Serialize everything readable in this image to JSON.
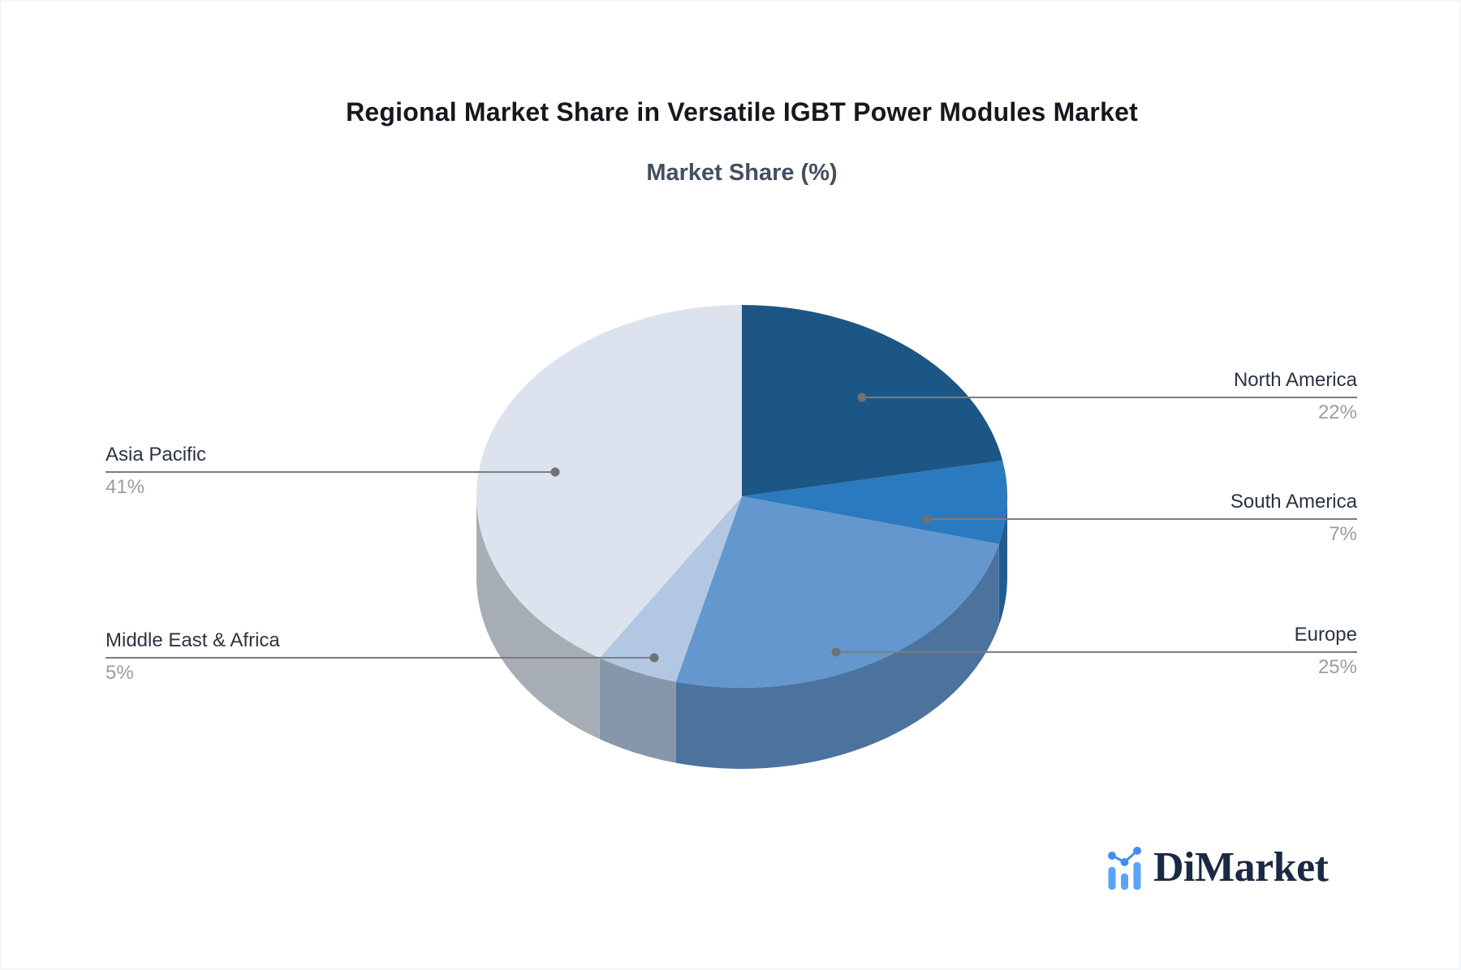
{
  "chart_data": {
    "type": "pie",
    "style": "3d",
    "title": "Regional Market Share in Versatile IGBT Power Modules Market",
    "subtitle": "Market Share (%)",
    "unit": "%",
    "start_angle": "12-oclock",
    "direction": "clockwise",
    "legend": "none",
    "points": [
      {
        "label": "North America",
        "value": 22,
        "value_label": "22%",
        "color": "#1c5685",
        "callout_side": "right"
      },
      {
        "label": "South America",
        "value": 7,
        "value_label": "7%",
        "color": "#2b79bf",
        "callout_side": "right"
      },
      {
        "label": "Europe",
        "value": 25,
        "value_label": "25%",
        "color": "#6397ce",
        "callout_side": "right"
      },
      {
        "label": "Middle East & Africa",
        "value": 5,
        "value_label": "5%",
        "color": "#b2c7e1",
        "callout_side": "left"
      },
      {
        "label": "Asia Pacific",
        "value": 41,
        "value_label": "41%",
        "color": "#dce3ee",
        "callout_side": "left"
      }
    ],
    "connector_color": "#7d7d7d",
    "connector_dot_color": "#6e7275",
    "label_color": "#2b3442",
    "value_color": "#989da3"
  },
  "watermark": {
    "brand": "DiMarket",
    "icon": "bar-chart-trend-logo-icon",
    "icon_bar_color": "#5aa4f4",
    "icon_dot_color": "#418ff2",
    "text_color": "#1b2a44"
  }
}
